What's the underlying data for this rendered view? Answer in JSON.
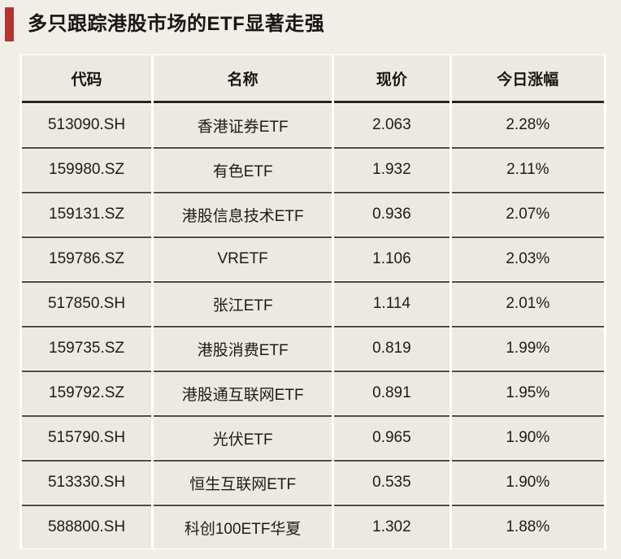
{
  "header": {
    "title": "多只跟踪港股市场的ETF显著走强",
    "accent_color": "#b5342f"
  },
  "chart_data": {
    "type": "table",
    "title": "多只跟踪港股市场的ETF显著走强",
    "columns": [
      "代码",
      "名称",
      "现价",
      "今日涨幅"
    ],
    "column_keys": [
      "code",
      "name",
      "price",
      "change"
    ],
    "rows": [
      [
        "513090.SH",
        "香港证券ETF",
        "2.063",
        "2.28%"
      ],
      [
        "159980.SZ",
        "有色ETF",
        "1.932",
        "2.11%"
      ],
      [
        "159131.SZ",
        "港股信息技术ETF",
        "0.936",
        "2.07%"
      ],
      [
        "159786.SZ",
        "VRETF",
        "1.106",
        "2.03%"
      ],
      [
        "517850.SH",
        "张江ETF",
        "1.114",
        "2.01%"
      ],
      [
        "159735.SZ",
        "港股消费ETF",
        "0.819",
        "1.99%"
      ],
      [
        "159792.SZ",
        "港股通互联网ETF",
        "0.891",
        "1.95%"
      ],
      [
        "515790.SH",
        "光伏ETF",
        "0.965",
        "1.90%"
      ],
      [
        "513330.SH",
        "恒生互联网ETF",
        "0.535",
        "1.90%"
      ],
      [
        "588800.SH",
        "科创100ETF华夏",
        "1.302",
        "1.88%"
      ]
    ],
    "colors": {
      "page_background": "#f1eee8",
      "cell_background": "#ece9e3",
      "grid_gap": "#ffffff",
      "row_border": "#4b4a43",
      "header_border": "#24231f",
      "text": "#1d1c18",
      "accent": "#b5342f"
    },
    "layout": {
      "header_row_bold": true,
      "cell_alignment": "center"
    }
  }
}
